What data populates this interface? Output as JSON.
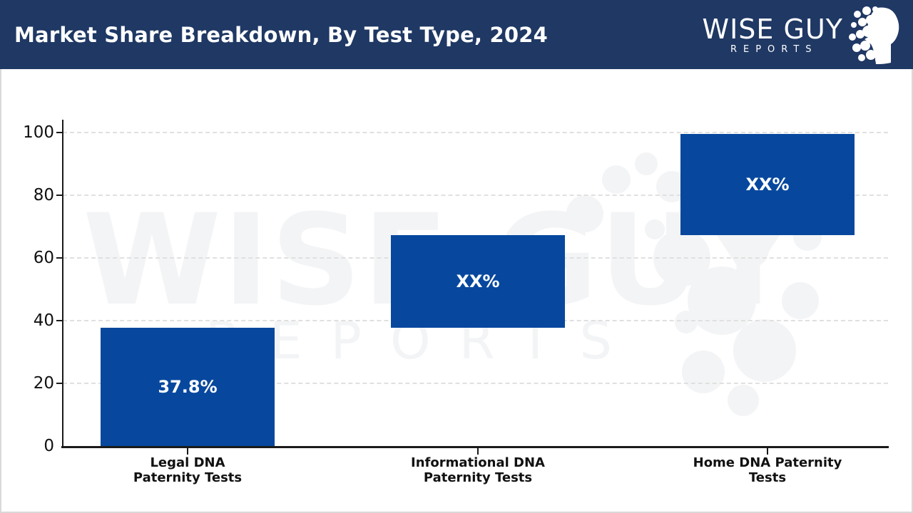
{
  "header": {
    "title": "Market Share Breakdown, By Test Type, 2024",
    "logo": {
      "line1": "WISE GUY",
      "line2": "REPORTS"
    }
  },
  "watermark": {
    "line1": "WISE GUY",
    "line2": "REPORTS"
  },
  "colors": {
    "header_bg": "#1f3864",
    "bar_blue": "#07489e",
    "grid_gray": "#e0e0e0",
    "watermark_gray": "#f3f4f6",
    "frame_gray": "#d9d9d9",
    "axis_black": "#1a1a1a"
  },
  "chart_data": {
    "type": "bar",
    "variant": "floating cumulative segment bars",
    "title": "Market Share Breakdown, By Test Type, 2024",
    "categories": [
      [
        "Legal DNA",
        "Paternity Tests"
      ],
      [
        "Informational DNA",
        "Paternity Tests"
      ],
      [
        "Home DNA Paternity",
        "Tests"
      ]
    ],
    "segments": [
      {
        "label": "37.8%",
        "start": 0,
        "end": 37.8
      },
      {
        "label": "XX%",
        "start": 37.8,
        "end": 67.3
      },
      {
        "label": "XX%",
        "start": 67.3,
        "end": 99.6
      }
    ],
    "xlabel": "",
    "ylabel": "",
    "ylim": [
      0,
      100
    ],
    "yticks": [
      0,
      20,
      40,
      60,
      80,
      100
    ],
    "grid": "horizontal dashed",
    "legend": "none",
    "bar_color": "#07489e",
    "bar_label_color": "#ffffff"
  }
}
